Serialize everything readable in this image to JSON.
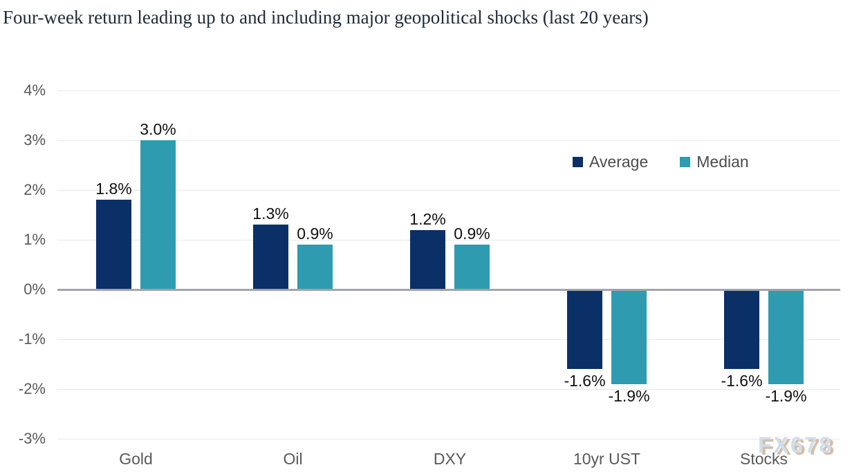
{
  "title": "Four-week return leading up to and including major geopolitical shocks (last 20 years)",
  "watermark": "FX678",
  "legend": [
    {
      "label": "Average",
      "color": "#0b3068"
    },
    {
      "label": "Median",
      "color": "#2e9bb1"
    }
  ],
  "colors": {
    "title_text": "#1e2a38",
    "axis_text": "#595959",
    "value_label_text": "#111111",
    "legend_text": "#4c4c4c",
    "grid": "#e7e7e7",
    "zero_line": "#a2a4a8",
    "average_bar": "#0b3068",
    "median_bar": "#2e9bb1",
    "watermark_fill": "#cfdeec",
    "watermark_shadow": "#c19a76"
  },
  "chart_data": {
    "type": "bar",
    "title": "Four-week return leading up to and including major geopolitical shocks (last 20 years)",
    "categories": [
      "Gold",
      "Oil",
      "DXY",
      "10yr UST",
      "Stocks"
    ],
    "series": [
      {
        "name": "Average",
        "color": "#0b3068",
        "values": [
          1.8,
          1.3,
          1.2,
          -1.6,
          -1.6
        ]
      },
      {
        "name": "Median",
        "color": "#2e9bb1",
        "values": [
          3.0,
          0.9,
          0.9,
          -1.9,
          -1.9
        ]
      }
    ],
    "labels": [
      [
        "1.8%",
        "1.3%",
        "1.2%",
        "-1.6%",
        "-1.6%"
      ],
      [
        "3.0%",
        "0.9%",
        "0.9%",
        "-1.9%",
        "-1.9%"
      ]
    ],
    "xlabel": "",
    "ylabel": "",
    "ylim": [
      -3,
      4
    ],
    "y_ticks": [
      4,
      3,
      2,
      1,
      0,
      -1,
      -2,
      -3
    ],
    "y_tick_labels": [
      "4%",
      "3%",
      "2%",
      "1%",
      "0%",
      "-1%",
      "-2%",
      "-3%"
    ],
    "grid": true,
    "legend_position": "inside-top-right"
  }
}
